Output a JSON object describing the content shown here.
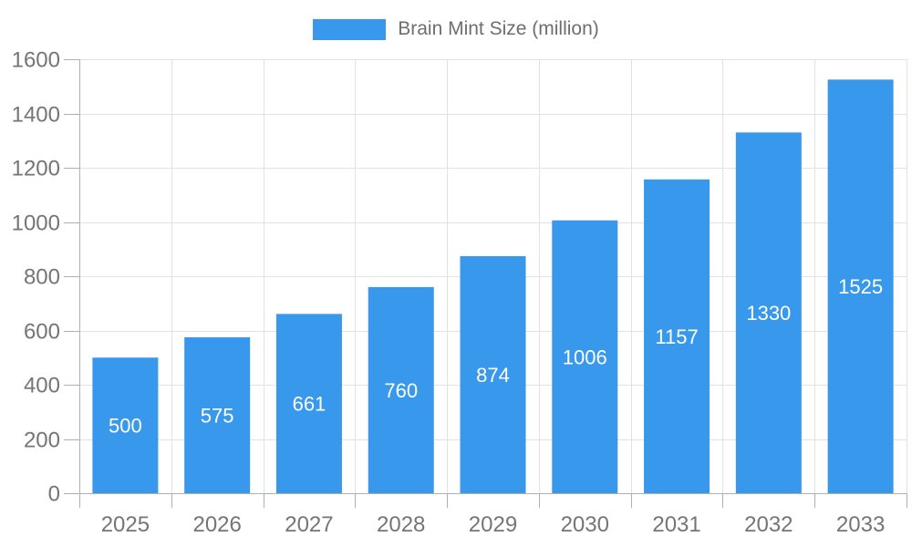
{
  "legend": {
    "label": "Brain Mint Size (million)"
  },
  "chart_data": {
    "type": "bar",
    "title": "",
    "xlabel": "",
    "ylabel": "",
    "categories": [
      "2025",
      "2026",
      "2027",
      "2028",
      "2029",
      "2030",
      "2031",
      "2032",
      "2033"
    ],
    "series": [
      {
        "name": "Brain Mint Size (million)",
        "values": [
          500,
          575,
          661,
          760,
          874,
          1006,
          1157,
          1330,
          1525
        ]
      }
    ],
    "ylim": [
      0,
      1600
    ],
    "ytick_step": 200,
    "yticks": [
      0,
      200,
      400,
      600,
      800,
      1000,
      1200,
      1400,
      1600
    ],
    "grid": true,
    "legend_position": "top-center",
    "data_labels": "inside-center",
    "colors": {
      "bar": "#3898ec",
      "data_label": "#ffffff",
      "axis_text": "#757575",
      "legend_text": "#6e6e6e",
      "grid_line": "#e2e2e2",
      "axis_line": "#b0b0b0"
    }
  }
}
